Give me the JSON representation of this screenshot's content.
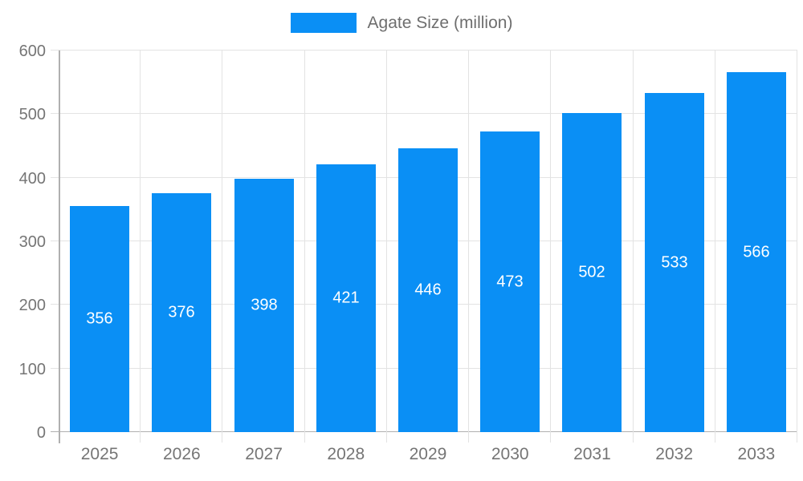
{
  "legend": {
    "label": "Agate Size (million)"
  },
  "chart_data": {
    "type": "bar",
    "title": "",
    "series_name": "Agate Size (million)",
    "categories": [
      "2025",
      "2026",
      "2027",
      "2028",
      "2029",
      "2030",
      "2031",
      "2032",
      "2033"
    ],
    "values": [
      356,
      376,
      398,
      421,
      446,
      473,
      502,
      533,
      566
    ],
    "xlabel": "",
    "ylabel": "",
    "ylim": [
      0,
      600
    ],
    "yticks": [
      0,
      100,
      200,
      300,
      400,
      500,
      600
    ],
    "grid": true,
    "legend_position": "top",
    "colors": {
      "bar": "#0a8ff5",
      "bar_value_text": "#ffffff",
      "axis_text": "#757575",
      "gridline": "#e3e3e3",
      "axis_line": "#b0b0b0"
    }
  }
}
